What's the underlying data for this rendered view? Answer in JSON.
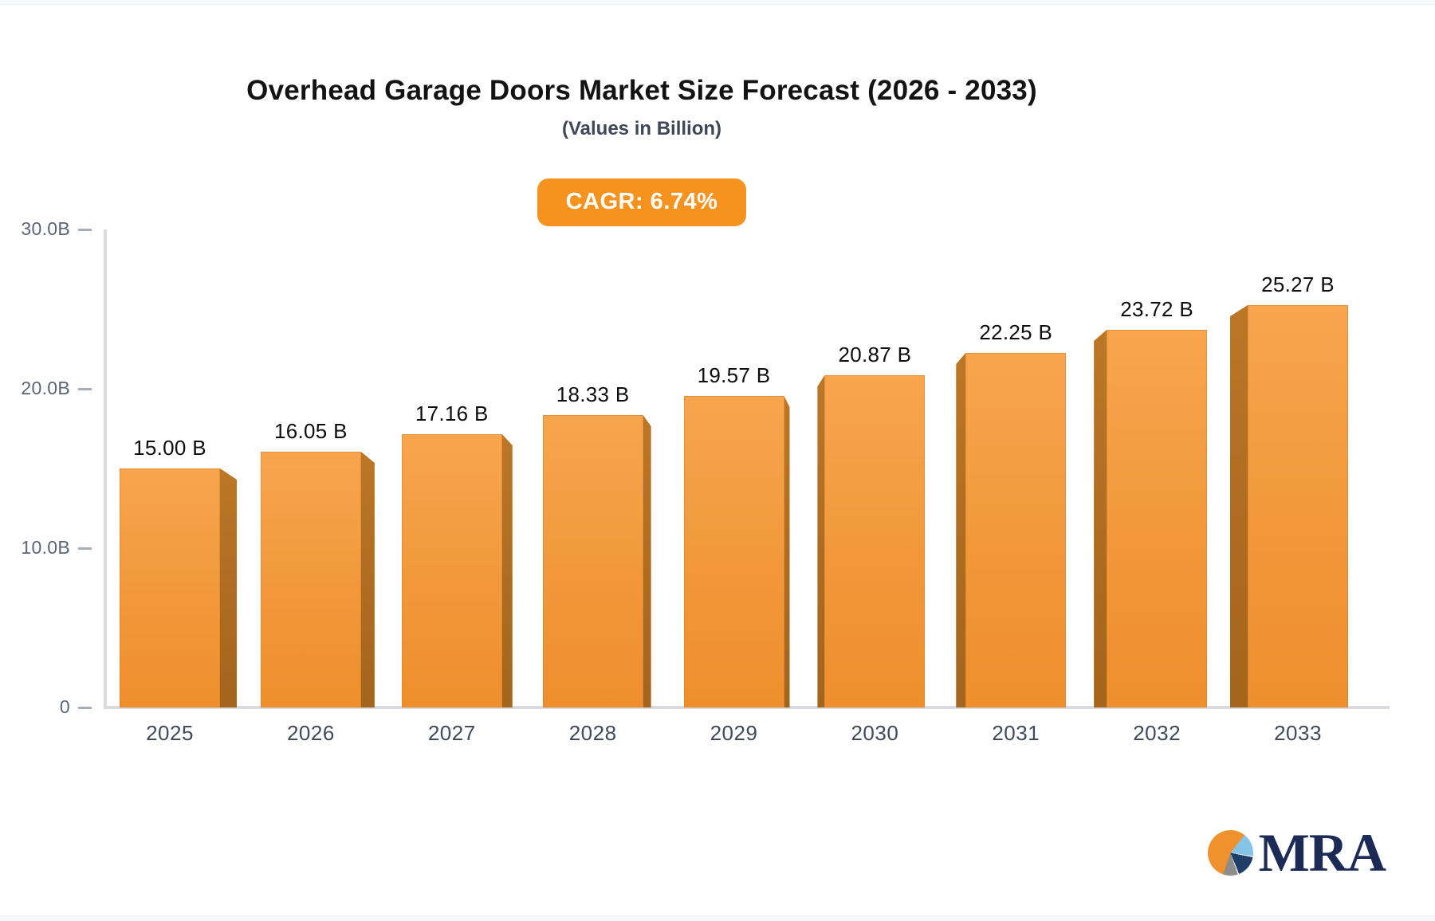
{
  "chart_data": {
    "type": "bar",
    "title": "Overhead Garage Doors Market Size Forecast (2026 - 2033)",
    "subtitle": "(Values in Billion)",
    "cagr_label": "CAGR: 6.74%",
    "categories": [
      "2025",
      "2026",
      "2027",
      "2028",
      "2029",
      "2030",
      "2031",
      "2032",
      "2033"
    ],
    "values": [
      15.0,
      16.05,
      17.16,
      18.33,
      19.57,
      20.87,
      22.25,
      23.72,
      25.27
    ],
    "value_labels": [
      "15.00 B",
      "16.05 B",
      "17.16 B",
      "18.33 B",
      "19.57 B",
      "20.87 B",
      "22.25 B",
      "23.72 B",
      "25.27 B"
    ],
    "unit": "Billion",
    "ylim": [
      0,
      30
    ],
    "yticks": [
      {
        "label": "30.0B",
        "value": 30
      },
      {
        "label": "20.0B",
        "value": 20
      },
      {
        "label": "10.0B",
        "value": 10
      },
      {
        "label": "0",
        "value": 0
      }
    ],
    "grid": "off",
    "legend": "none",
    "bar_color_top": "#F8A54E",
    "bar_color_bottom": "#EF8E2C",
    "bar_side_color": "#A3641C",
    "badge_color": "#F6921E"
  },
  "logo": {
    "text": "MRA",
    "pie_colors": {
      "orange": "#F0912D",
      "light_blue": "#85C4E6",
      "navy": "#1F3F68",
      "gray": "#8D8D8D"
    },
    "text_color": "#1B2B55"
  }
}
